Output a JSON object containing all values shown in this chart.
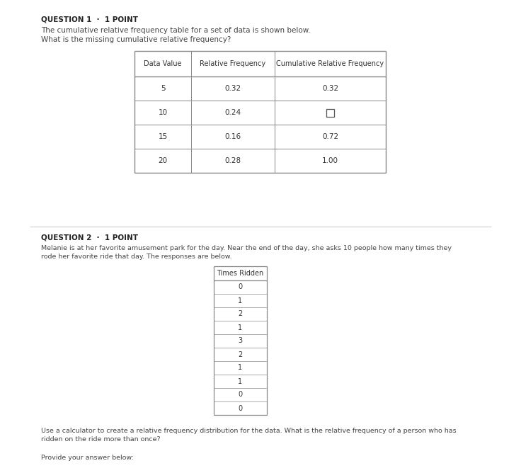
{
  "q1_title": "QUESTION 1",
  "q1_point": "1 POINT",
  "q1_desc1": "The cumulative relative frequency table for a set of data is shown below.",
  "q1_desc2": "What is the missing cumulative relative frequency?",
  "table1_headers": [
    "Data Value",
    "Relative Frequency",
    "Cumulative Relative Frequency"
  ],
  "table1_rows": [
    [
      "5",
      "0.32",
      "0.32"
    ],
    [
      "10",
      "0.24",
      "□"
    ],
    [
      "15",
      "0.16",
      "0.72"
    ],
    [
      "20",
      "0.28",
      "1.00"
    ]
  ],
  "q2_title": "QUESTION 2",
  "q2_point": "1 POINT",
  "q2_desc1": "Melanie is at her favorite amusement park for the day. Near the end of the day, she asks 10 people how many times they",
  "q2_desc2": "rode her favorite ride that day. The responses are below.",
  "table2_header": "Times Ridden",
  "table2_values": [
    "0",
    "1",
    "2",
    "1",
    "3",
    "2",
    "1",
    "1",
    "0",
    "0"
  ],
  "q2_footer1": "Use a calculator to create a relative frequency distribution for the data. What is the relative frequency of a person who has",
  "q2_footer2": "ridden on the ride more than once?",
  "q2_answer_prompt": "Provide your answer below:",
  "bg_color": "#ffffff",
  "border_color": "#888888",
  "header_sep_color": "#555555",
  "sep_line_color": "#cccccc",
  "title_color": "#222222",
  "body_text_color": "#444444",
  "cell_text_color": "#333333"
}
